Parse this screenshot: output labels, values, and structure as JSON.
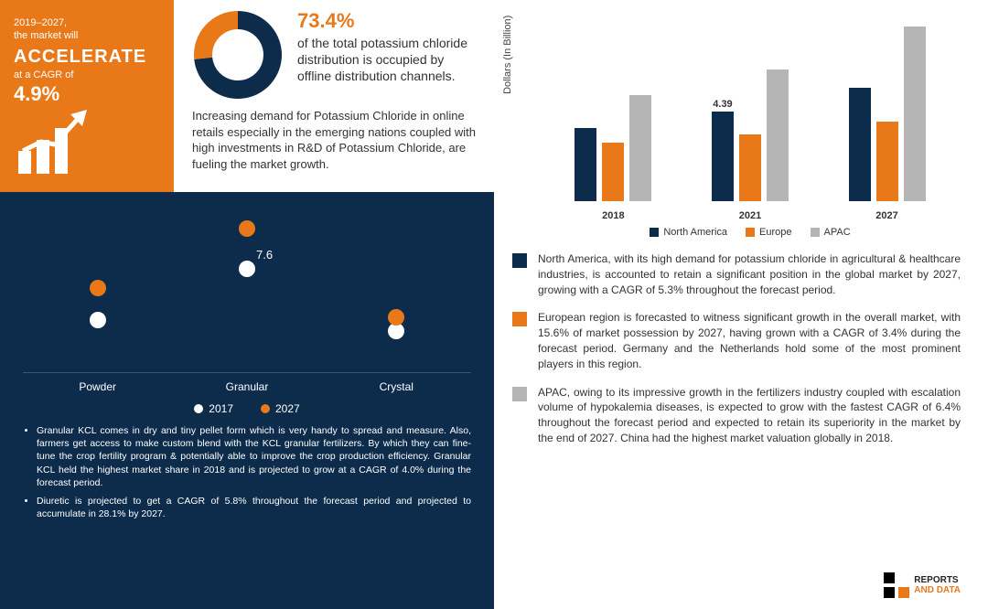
{
  "cagr_box": {
    "period": "2019–2027,",
    "line1": "the market will",
    "accel": "ACCELERATE",
    "line2": "at a CAGR of",
    "pct": "4.9%",
    "bg": "#e87818",
    "text_color": "#ffffff"
  },
  "donut": {
    "hl": "73.4%",
    "hl_color": "#e87818",
    "desc": "of the total potassium chloride distribution is occupied by offline distribution channels.",
    "para": "Increasing demand for Potassium Chloride in online retails especially in the emerging nations coupled with high investments in R&D of Potassium Chloride, are fueling the market growth.",
    "pct_offline": 73.4,
    "colors": {
      "offline": "#0d2b4a",
      "online": "#e87818"
    },
    "inner_r": 28,
    "outer_r": 48
  },
  "scatter": {
    "bg": "#0d2b4a",
    "categories": [
      "Powder",
      "Granular",
      "Crystal"
    ],
    "series": [
      {
        "name": "2017",
        "color": "#ffffff",
        "values": [
          3.8,
          7.6,
          3.0
        ]
      },
      {
        "name": "2027",
        "color": "#e87818",
        "values": [
          6.2,
          10.5,
          4.0
        ]
      }
    ],
    "ymax": 12,
    "label_point": {
      "cat": 1,
      "series": 0,
      "text": "7.6"
    },
    "bullets": [
      "Granular KCL comes in dry and tiny pellet form which is very handy to spread and measure. Also, farmers get access to make custom blend with the KCL granular fertilizers. By which they can fine-tune the crop fertility program & potentially able to improve the crop production efficiency. Granular KCL held the highest market share in 2018 and is projected to grow at a CAGR of 4.0% during the forecast period.",
      "Diuretic is projected to get a CAGR of 5.8% throughout the forecast period and projected to accumulate in 28.1% by 2027."
    ]
  },
  "bar": {
    "ylabel": "Dollars (In Billion)",
    "years": [
      "2018",
      "2021",
      "2027"
    ],
    "series": [
      {
        "name": "North America",
        "color": "#0d2b4a",
        "values": [
          3.6,
          4.39,
          5.6
        ]
      },
      {
        "name": "Europe",
        "color": "#e87818",
        "values": [
          2.9,
          3.3,
          3.9
        ]
      },
      {
        "name": "APAC",
        "color": "#b5b5b5",
        "values": [
          5.2,
          6.5,
          8.6
        ]
      }
    ],
    "ymax": 9,
    "label_bar": {
      "year": 1,
      "series": 0,
      "text": "4.39"
    }
  },
  "regions": [
    {
      "color": "#0d2b4a",
      "text": "North America, with its high demand for potassium chloride in agricultural & healthcare industries, is accounted to retain a significant position in the global market by 2027, growing with a CAGR of 5.3% throughout the forecast period."
    },
    {
      "color": "#e87818",
      "text": "European region is forecasted to witness significant growth in the overall market, with 15.6% of market possession by 2027, having grown with a CAGR of 3.4% during the forecast period. Germany and the Netherlands hold some of the most prominent players in this region."
    },
    {
      "color": "#b5b5b5",
      "text": "APAC, owing to its impressive growth in the fertilizers industry coupled with escalation volume of hypokalemia diseases, is expected to grow with the fastest CAGR of 6.4% throughout the forecast period and expected to retain its superiority in the market by the end of 2027. China had the highest market valuation globally in 2018."
    }
  ],
  "logo": {
    "r": "REPORTS",
    "d": "AND DATA"
  }
}
